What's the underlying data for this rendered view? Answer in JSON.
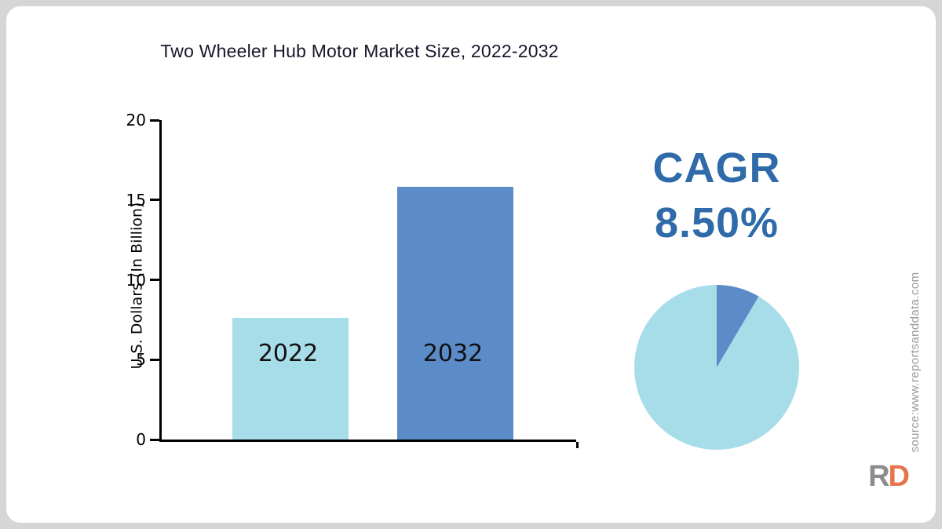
{
  "title": "Two Wheeler Hub Motor Market Size, 2022-2032",
  "chart_data": {
    "type": "bar",
    "categories": [
      "2022",
      "2032"
    ],
    "values": [
      7.6,
      15.8
    ],
    "title": "Two Wheeler Hub Motor Market Size, 2022-2032",
    "xlabel": "",
    "ylabel": "U.S. Dollars (In Billion)",
    "ylim": [
      0,
      20
    ],
    "yticks": [
      0,
      5,
      10,
      15,
      20
    ],
    "bar_colors": [
      "#a7dce9",
      "#5b8cc8"
    ],
    "grid": false,
    "legend": "none"
  },
  "cagr": {
    "label": "CAGR",
    "value": "8.50%",
    "text_color": "#2e6ba8",
    "pie_percent": 8.5,
    "pie_slice_color": "#5b8cc8",
    "pie_base_color": "#a7dce9"
  },
  "source": "source:www.reportsanddata.com",
  "logo": {
    "letter_r": "R",
    "letter_d": "D"
  }
}
